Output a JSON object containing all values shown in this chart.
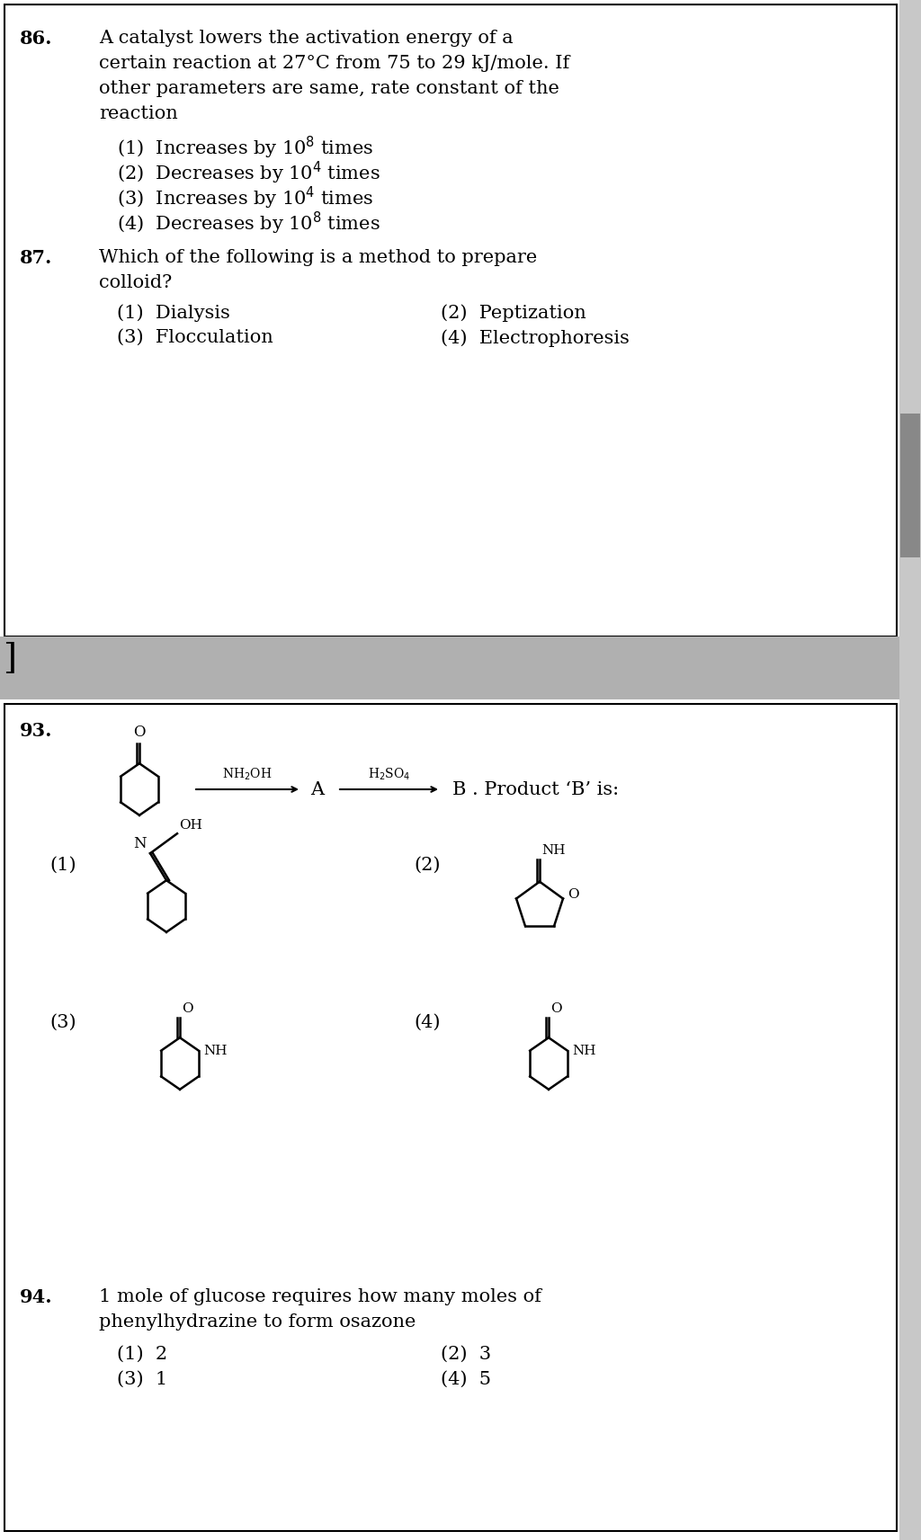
{
  "bg_color": "#ffffff",
  "text_color": "#000000",
  "font_size_main": 15,
  "font_size_num": 15,
  "font_size_chem": 10,
  "font_family": "DejaVu Serif",
  "q86_num": "86.",
  "q86_lines": [
    "A catalyst lowers the activation energy of a",
    "certain reaction at 27°C from 75 to 29 kJ/mole. If",
    "other parameters are same, rate constant of the",
    "reaction"
  ],
  "q86_opts": [
    "(1)  Increases by 10$^{8}$ times",
    "(2)  Decreases by 10$^{4}$ times",
    "(3)  Increases by 10$^{4}$ times",
    "(4)  Decreases by 10$^{8}$ times"
  ],
  "q87_num": "87.",
  "q87_lines": [
    "Which of the following is a method to prepare",
    "colloid?"
  ],
  "q87_opts_left": [
    "(1)  Dialysis",
    "(3)  Flocculation"
  ],
  "q87_opts_right": [
    "(2)  Peptization",
    "(4)  Electrophoresis"
  ],
  "q93_num": "93.",
  "q93_reagent1": "NH$_{2}$OH",
  "q93_mid": "A",
  "q93_reagent2": "H$_{2}$SO$_{4}$",
  "q93_end": "B . Product ‘B’ is:",
  "q94_num": "94.",
  "q94_lines": [
    "1 mole of glucose requires how many moles of",
    "phenylhydrazine to form osazone"
  ],
  "q94_opts_left": [
    "(1)  2",
    "(3)  1"
  ],
  "q94_opts_right": [
    "(2)  3",
    "(4)  5"
  ],
  "scrollbar_color": "#c8c8c8",
  "scrollbar_thumb": "#888888",
  "separator_color": "#b0b0b0",
  "box_edge_color": "#000000",
  "bracket_char": "]"
}
